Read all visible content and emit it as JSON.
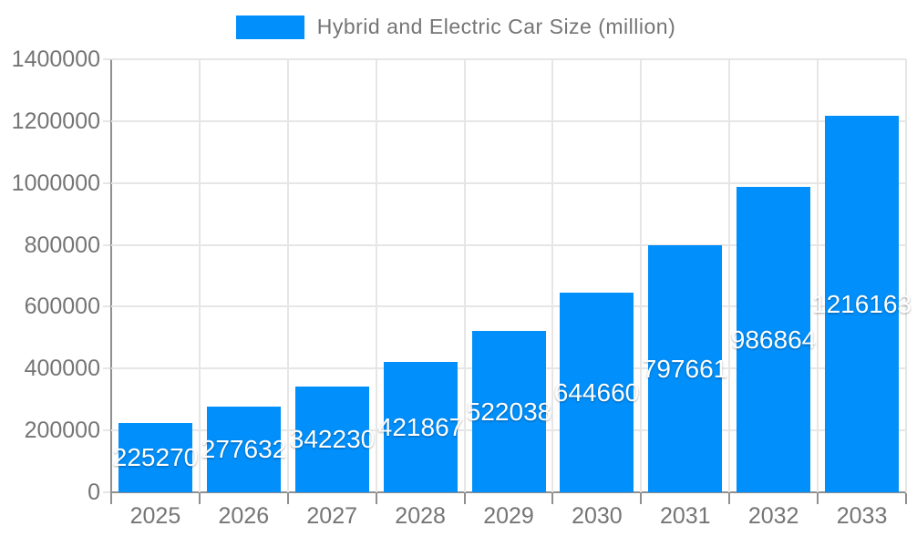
{
  "legend": {
    "label": "Hybrid and Electric Car Size (million)",
    "swatch_color": "#008FFB"
  },
  "chart_data": {
    "type": "bar",
    "title": "Hybrid and Electric Car Size (million)",
    "categories": [
      "2025",
      "2026",
      "2027",
      "2028",
      "2029",
      "2030",
      "2031",
      "2032",
      "2033"
    ],
    "series": [
      {
        "name": "Hybrid and Electric Car Size (million)",
        "values": [
          225270,
          277632,
          342230,
          421867,
          522038,
          644660,
          797661,
          986864,
          1216163
        ]
      }
    ],
    "data_labels": [
      "225270",
      "277632",
      "342230",
      "421867",
      "522038",
      "644660",
      "797661",
      "986864",
      "1216163"
    ],
    "xlabel": "",
    "ylabel": "",
    "ylim": [
      0,
      1400000
    ],
    "ytick_step": 200000,
    "yticks": [
      0,
      200000,
      400000,
      600000,
      800000,
      1000000,
      1200000,
      1400000
    ],
    "ytick_labels": [
      "0",
      "200000",
      "400000",
      "600000",
      "800000",
      "1000000",
      "1200000",
      "1400000"
    ],
    "grid": true,
    "legend_position": "top",
    "colors": {
      "bar": "#008FFB",
      "bar_label_text": "#ffffff",
      "axis_text": "#757575",
      "grid_line": "#e6e6e6",
      "axis_line": "#8f8f8f",
      "background": "#ffffff"
    }
  }
}
